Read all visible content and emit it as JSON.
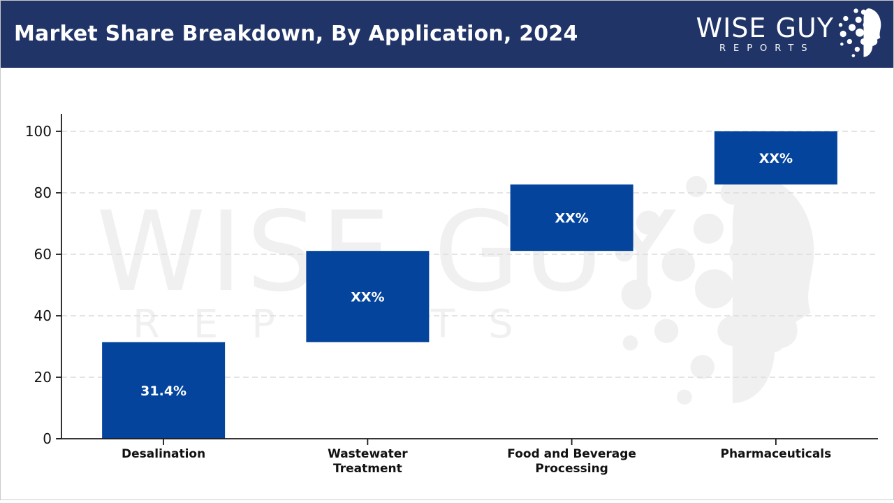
{
  "header": {
    "title": "Market Share Breakdown, By Application, 2024",
    "bg_color": "#203468",
    "logo": {
      "primary": "WISE GUY",
      "secondary": "REPORTS",
      "icon": "dotted-head-profile"
    }
  },
  "watermark": {
    "primary": "WISE GUY",
    "secondary": "REPORTS",
    "color": "#f0f0f0"
  },
  "chart_data": {
    "type": "bar",
    "subtype": "waterfall",
    "title": "Market Share Breakdown, By Application, 2024",
    "categories": [
      "Desalination",
      "Wastewater Treatment",
      "Food and Beverage Processing",
      "Pharmaceuticals"
    ],
    "category_label_lines": [
      [
        "Desalination"
      ],
      [
        "Wastewater",
        "Treatment"
      ],
      [
        "Food and Beverage",
        "Processing"
      ],
      [
        "Pharmaceuticals"
      ]
    ],
    "segments": [
      {
        "category": "Desalination",
        "start": 0,
        "end": 31.4,
        "label": "31.4%"
      },
      {
        "category": "Wastewater Treatment",
        "start": 31.4,
        "end": 61.1,
        "label": "XX%"
      },
      {
        "category": "Food and Beverage Processing",
        "start": 61.1,
        "end": 82.7,
        "label": "XX%"
      },
      {
        "category": "Pharmaceuticals",
        "start": 82.7,
        "end": 100,
        "label": "XX%"
      }
    ],
    "yticks": [
      0,
      20,
      40,
      60,
      80,
      100
    ],
    "ylim": [
      0,
      105.7
    ],
    "grid": {
      "horizontal": true,
      "style": "dashed",
      "color": "#dcdcdc"
    },
    "legend": "none",
    "bar_color": "#05449c",
    "bar_label_color": "#ffffff",
    "axis_color": "#1a1a1a"
  }
}
